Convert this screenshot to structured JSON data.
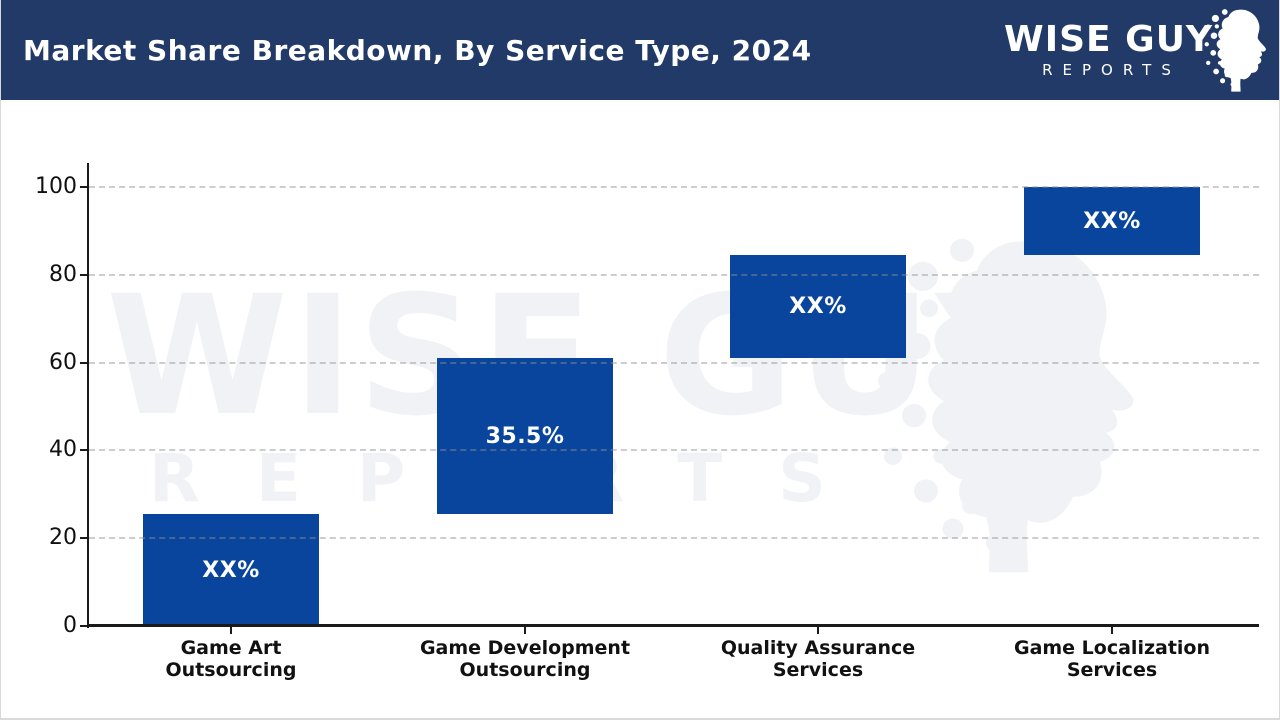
{
  "header": {
    "title": "Market Share Breakdown, By Service Type, 2024",
    "brand": {
      "line1": "WISE GUY",
      "line2": "REPORTS"
    }
  },
  "watermark": {
    "line1": "WISE GUY",
    "line2": "REPORTS"
  },
  "colors": {
    "header_bg": "#223a67",
    "bar_blue": "#09459c",
    "grid_dash": "#cfcfcf",
    "axis": "#1a1a1a",
    "watermark_gray": "#f0f2f5",
    "bar_label_text": "#ffffff"
  },
  "chart_data": {
    "type": "bar",
    "variant": "floating-waterfall",
    "title": "Market Share Breakdown, By Service Type, 2024",
    "categories": [
      "Game Art Outsourcing",
      "Game Development Outsourcing",
      "Quality Assurance Services",
      "Game Localization Services"
    ],
    "category_label_lines": [
      [
        "Game Art",
        "Outsourcing"
      ],
      [
        "Game Development",
        "Outsourcing"
      ],
      [
        "Quality Assurance",
        "Services"
      ],
      [
        "Game Localization",
        "Services"
      ]
    ],
    "series": [
      {
        "name": "Market share (%)",
        "segments": [
          {
            "from": 0,
            "to": 25.5
          },
          {
            "from": 25.5,
            "to": 61.0
          },
          {
            "from": 61.0,
            "to": 84.5
          },
          {
            "from": 84.5,
            "to": 100.0
          }
        ],
        "values": [
          25.5,
          35.5,
          23.5,
          15.5
        ],
        "bar_labels": [
          "XX%",
          "35.5%",
          "XX%",
          "XX%"
        ]
      }
    ],
    "xlabel": "",
    "ylabel": "",
    "ylim": [
      0,
      100
    ],
    "yticks": [
      0,
      20,
      40,
      60,
      80,
      100
    ],
    "grid": "horizontal-dashed-above-bars",
    "legend": "none"
  }
}
